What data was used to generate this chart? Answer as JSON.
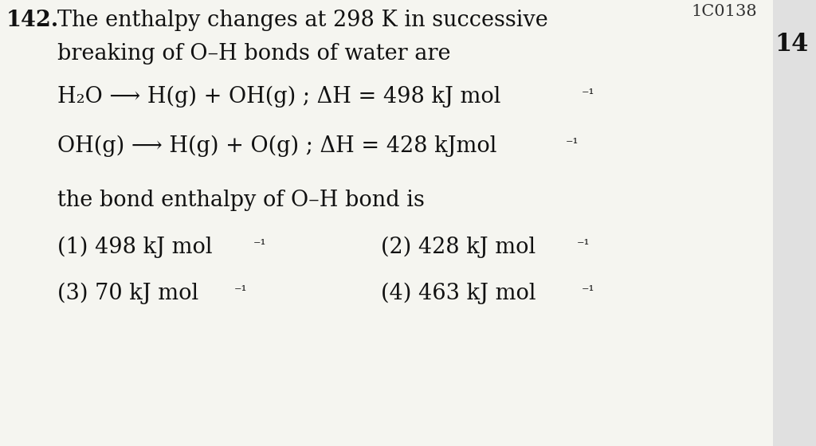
{
  "bg_color": "#f5f5f0",
  "right_strip_color": "#e8e8e8",
  "chevron_color": "#aaaaaa",
  "font_color": "#111111",
  "header_text": "1C0138",
  "side_number": "14",
  "q_num": "142.",
  "line1": "The enthalpy changes at 298 K in successive",
  "line2": "breaking of O–H bonds of water are",
  "eq1": "H₂O ⟶ H(g) + OH(g) ; ΔH = 498 kJ mol⁻¹",
  "eq2": "OH(g) ⟶ H(g) + O(g) ; ΔH = 428 kJmol⁻¹",
  "conclusion": "the bond enthalpy of O–H bond is",
  "opt1_main": "(1) 498 kJ mol",
  "opt1_sup": "⁻¹",
  "opt2_main": "(2) 428 kJ mol",
  "opt2_sup": "⁻¹",
  "opt3_main": "(3) 70 kJ mol",
  "opt3_sup": "⁻¹",
  "opt4_main": "(4) 463 kJ mol",
  "opt4_sup": "⁻¹",
  "font_size": 19.5,
  "font_size_small": 13,
  "font_size_header": 15
}
